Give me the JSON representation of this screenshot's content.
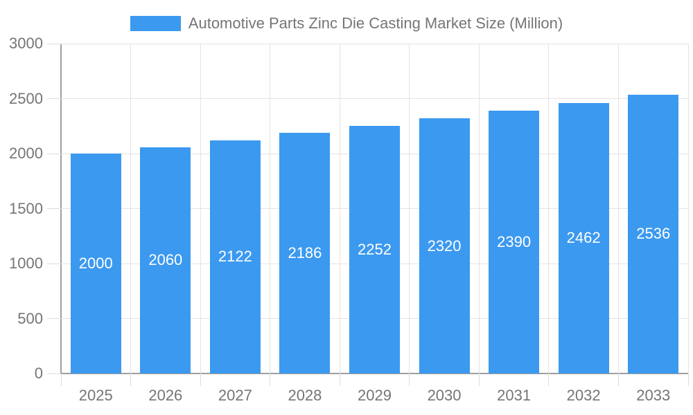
{
  "chart_data": {
    "type": "bar",
    "title": "Automotive Parts Zinc Die Casting Market Size (Million)",
    "categories": [
      "2025",
      "2026",
      "2027",
      "2028",
      "2029",
      "2030",
      "2031",
      "2032",
      "2033"
    ],
    "values": [
      2000,
      2060,
      2122,
      2186,
      2252,
      2320,
      2390,
      2462,
      2536
    ],
    "series_name": "Automotive Parts Zinc Die Casting Market Size (Million)",
    "xlabel": "",
    "ylabel": "",
    "ylim": [
      0,
      3000
    ],
    "yticks": [
      0,
      500,
      1000,
      1500,
      2000,
      2500,
      3000
    ],
    "grid": true,
    "legend_position": "top",
    "value_labels": "inside-center-white"
  },
  "colors": {
    "bar": "#3B99F0",
    "grid": "#E3E3E3",
    "tick": "#DCDCDC",
    "axis": "#9E9E9E",
    "text": "#757575",
    "value_label": "#FFFFFF",
    "background": "#FFFFFF"
  }
}
